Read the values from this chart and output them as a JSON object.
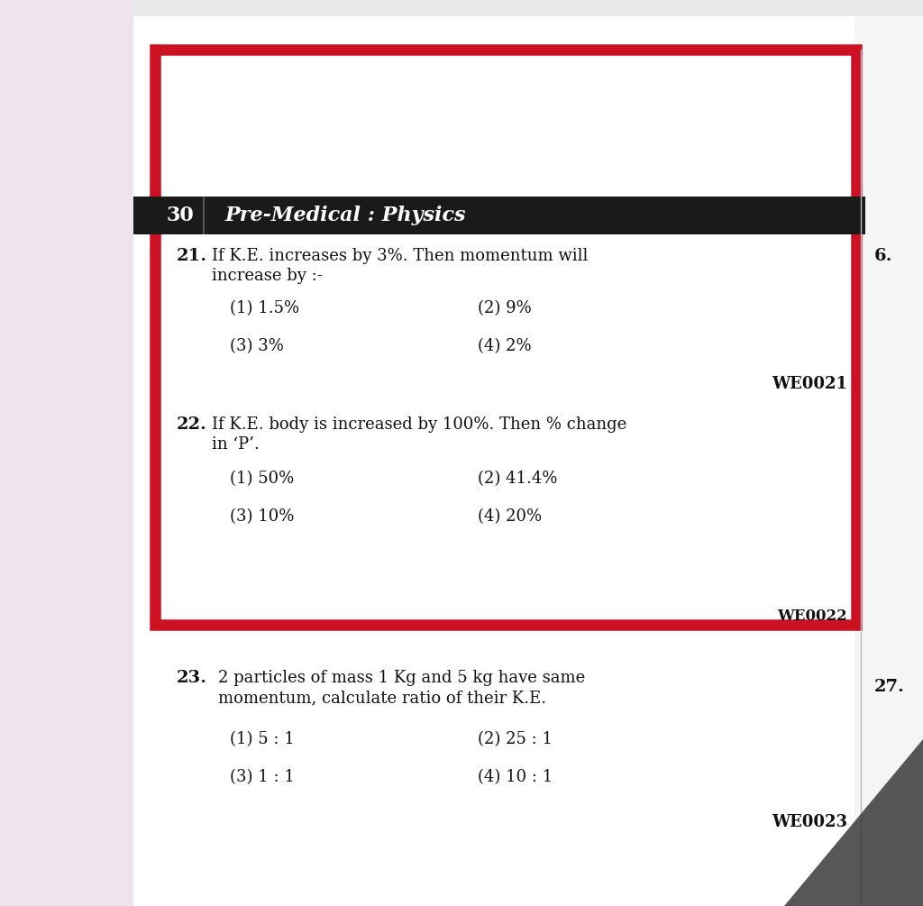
{
  "bg_left_color": "#f0e8ee",
  "bg_right_color": "#f0f0f0",
  "page_bg": "#ffffff",
  "red_border_color": "#cc1122",
  "header_bg": "#1a1a1a",
  "header_number": "30",
  "header_title": "Pre-Medical : Physics",
  "q21_number": "21.",
  "q21_text_line1": "If K.E. increases by 3%. Then momentum will",
  "q21_text_line2": "increase by :-",
  "q21_opt1": "(1) 1.5%",
  "q21_opt2": "(2) 9%",
  "q21_opt3": "(3) 3%",
  "q21_opt4": "(4) 2%",
  "q21_code": "WE0021",
  "q22_number": "22.",
  "q22_text_line1": "If K.E. body is increased by 100%. Then % change",
  "q22_text_line2": "in ‘P’.",
  "q22_opt1": "(1) 50%",
  "q22_opt2": "(2) 41.4%",
  "q22_opt3": "(3) 10%",
  "q22_opt4": "(4) 20%",
  "q23_number": "23.",
  "q23_text_line1": "2 particles of mass 1 Kg and 5 kg have same",
  "q23_text_line2": "momentum, calculate ratio of their K.E.",
  "q23_opt1": "(1) 5 : 1",
  "q23_opt2": "(2) 25 : 1",
  "q23_opt3": "(3) 1 : 1",
  "q23_opt4": "(4) 10 : 1",
  "q23_code": "WE0023",
  "side_number": "6.",
  "side_number2": "27.",
  "text_color": "#111111",
  "code_color": "#111111",
  "we22_partial": "WE0022"
}
